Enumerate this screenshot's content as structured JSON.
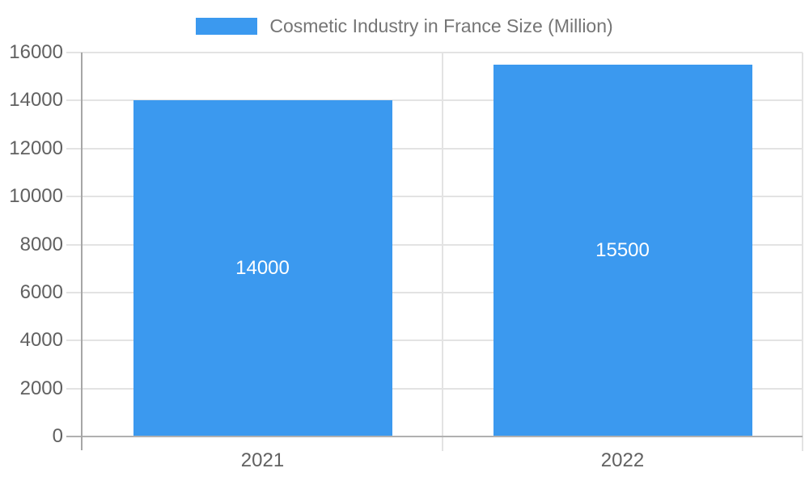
{
  "legend": {
    "label": "Cosmetic Industry in France Size (Million)"
  },
  "chart_data": {
    "type": "bar",
    "title": "Cosmetic Industry in France Size (Million)",
    "series_name": "Cosmetic Industry in France Size (Million)",
    "categories": [
      "2021",
      "2022"
    ],
    "values": [
      14000,
      15500
    ],
    "bar_value_labels": [
      "14000",
      "15500"
    ],
    "xlabel": "",
    "ylabel": "",
    "ylim": [
      0,
      16000
    ],
    "yticks": [
      0,
      2000,
      4000,
      6000,
      8000,
      10000,
      12000,
      14000,
      16000
    ],
    "grid": true,
    "legend_position": "top-center",
    "value_labels_inside_bars": true
  },
  "colors": {
    "bar": "#3B99EF",
    "gridline": "#E3E3E3",
    "baseline": "#B0B0B0",
    "axis_line": "#A6A6A6",
    "axis_text": "#616161",
    "legend_text": "#757575",
    "bar_label_text": "#FFFFFF",
    "background": "#FFFFFF"
  }
}
